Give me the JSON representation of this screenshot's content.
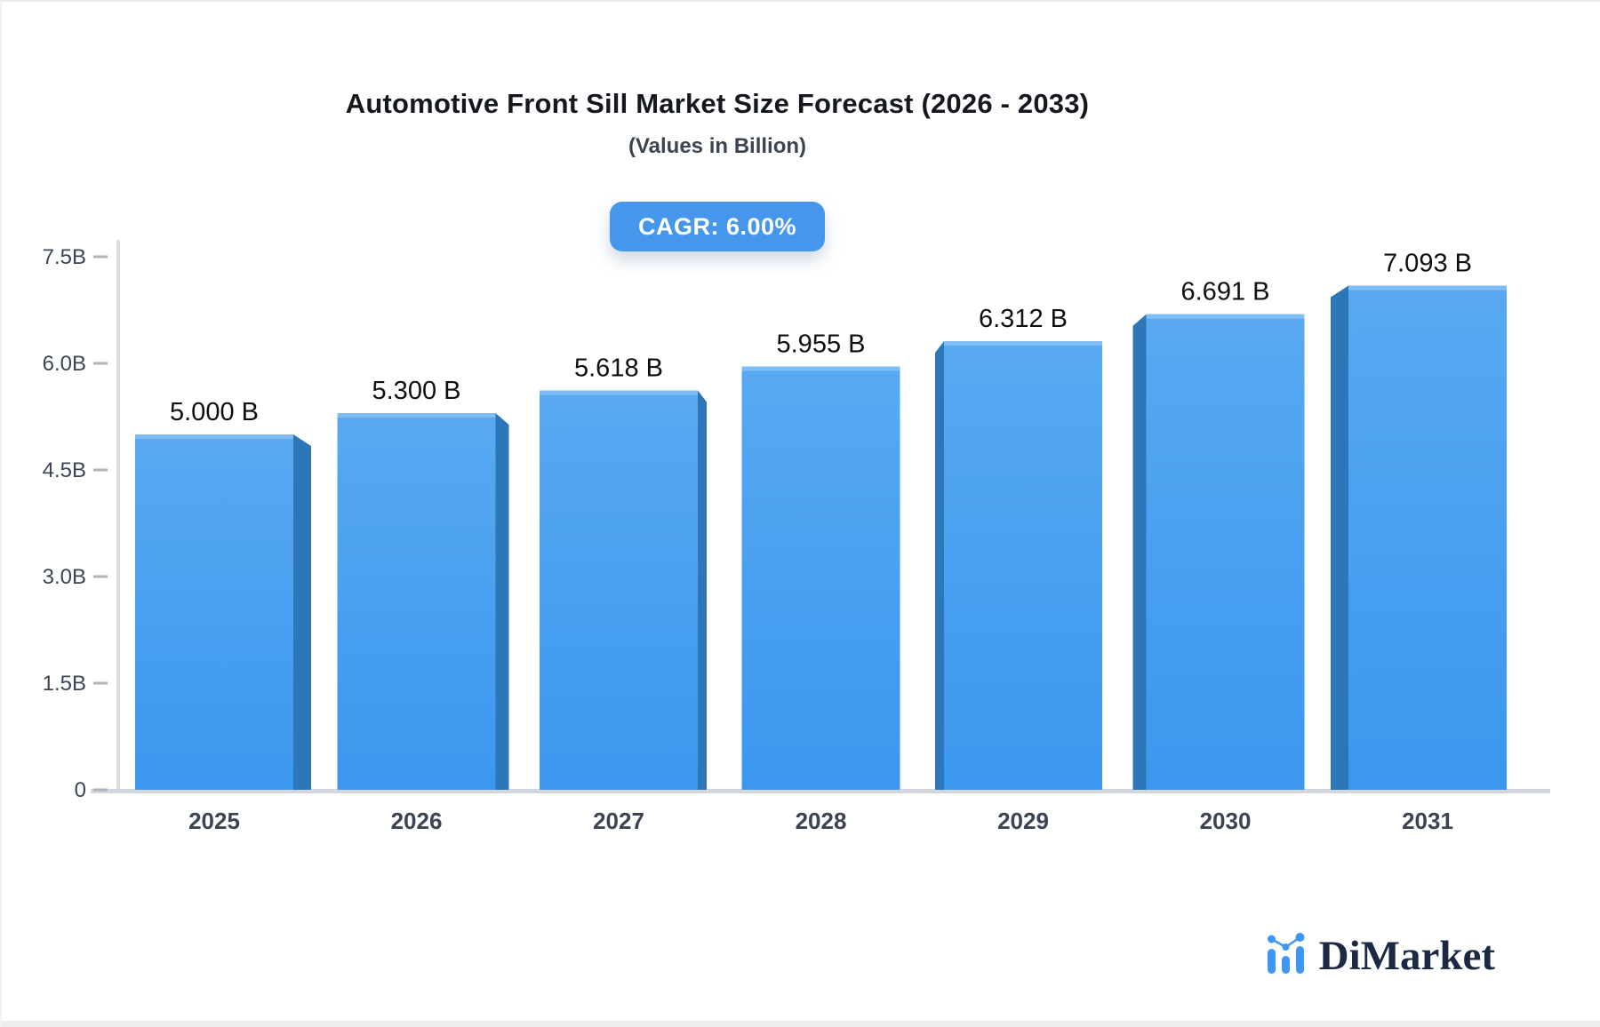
{
  "chart_data": {
    "type": "bar",
    "title": "Automotive Front Sill Market Size Forecast (2026 - 2033)",
    "subtitle": "(Values in Billion)",
    "cagr_badge": "CAGR: 6.00%",
    "categories": [
      "2025",
      "2026",
      "2027",
      "2028",
      "2029",
      "2030",
      "2031"
    ],
    "values": [
      5.0,
      5.3,
      5.618,
      5.955,
      6.312,
      6.691,
      7.093
    ],
    "value_labels": [
      "5.000 B",
      "5.300 B",
      "5.618 B",
      "5.955 B",
      "6.312 B",
      "6.691 B",
      "7.093 B"
    ],
    "ylim": [
      0,
      7.5
    ],
    "ytick_values": [
      0,
      1.5,
      3,
      4.5,
      6,
      7.5
    ],
    "ytick_labels": [
      "0",
      "1.5B",
      "3.0B",
      "4.5B",
      "6.0B",
      "7.5B"
    ],
    "xlabel": "",
    "ylabel": "",
    "grid": false,
    "legend": false
  },
  "branding": {
    "name": "DiMarket",
    "icon": "bar-chart-logo-icon"
  },
  "colors": {
    "bar_face_top": "#58a9f1",
    "bar_face_bottom": "#3b97ef",
    "bar_top_strip": "#7fbdf5",
    "bar_side": "#2d76b8",
    "axis_line": "#dadde1",
    "baseline": "#d3d6db",
    "tick_dash": "#aeb4bc",
    "axis_label": "#3c4454",
    "value_label": "#0e0f12",
    "badge_bg": "#4697ec",
    "badge_text": "#ffffff",
    "logo_blue": "#3f97f5",
    "logo_navy": "#1b2944"
  }
}
